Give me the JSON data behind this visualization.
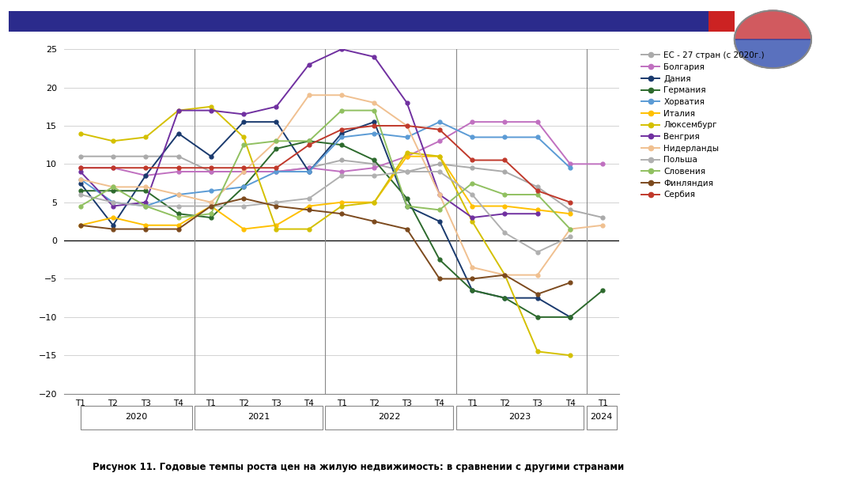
{
  "series": {
    "ЕС - 27 стран (с 2020г.)": {
      "color": "#aaaaaa",
      "values": [
        11.0,
        11.0,
        11.0,
        11.0,
        9.0,
        9.0,
        9.0,
        9.5,
        10.5,
        10.0,
        9.0,
        10.0,
        9.5,
        9.0,
        7.0,
        4.0,
        3.0
      ]
    },
    "Болгария": {
      "color": "#c070c0",
      "values": [
        9.5,
        9.5,
        8.5,
        9.0,
        9.0,
        9.0,
        9.0,
        9.5,
        9.0,
        9.5,
        11.0,
        13.0,
        15.5,
        15.5,
        15.5,
        10.0,
        10.0
      ]
    },
    "Дания": {
      "color": "#1a3a6e",
      "values": [
        7.5,
        2.0,
        8.5,
        14.0,
        11.0,
        15.5,
        15.5,
        9.0,
        14.0,
        15.5,
        4.5,
        2.5,
        -6.5,
        -7.5,
        -7.5,
        -10.0,
        null
      ]
    },
    "Германия": {
      "color": "#2d6a2d",
      "values": [
        6.5,
        6.5,
        6.5,
        3.5,
        3.0,
        7.0,
        12.0,
        13.0,
        12.5,
        10.5,
        5.5,
        -2.5,
        -6.5,
        -7.5,
        -10.0,
        -10.0,
        -6.5
      ]
    },
    "Хорватия": {
      "color": "#5b9bd5",
      "values": [
        8.0,
        5.0,
        4.5,
        6.0,
        6.5,
        7.0,
        9.0,
        9.0,
        13.5,
        14.0,
        13.5,
        15.5,
        13.5,
        13.5,
        13.5,
        9.5,
        null
      ]
    },
    "Италия": {
      "color": "#ffc000",
      "values": [
        2.0,
        3.0,
        2.0,
        2.0,
        4.5,
        1.5,
        2.0,
        4.5,
        5.0,
        5.0,
        11.0,
        11.0,
        4.5,
        4.5,
        4.0,
        3.5,
        null
      ]
    },
    "Люксембург": {
      "color": "#d4c000",
      "values": [
        14.0,
        13.0,
        13.5,
        17.0,
        17.5,
        13.5,
        1.5,
        1.5,
        4.5,
        5.0,
        11.5,
        11.0,
        2.5,
        -4.5,
        -14.5,
        -15.0,
        null
      ]
    },
    "Венгрия": {
      "color": "#7030a0",
      "values": [
        9.0,
        4.5,
        5.0,
        17.0,
        17.0,
        16.5,
        17.5,
        23.0,
        25.0,
        24.0,
        18.0,
        6.0,
        3.0,
        3.5,
        3.5,
        null,
        null
      ]
    },
    "Нидерланды": {
      "color": "#f0c090",
      "values": [
        8.0,
        7.0,
        7.0,
        6.0,
        5.0,
        9.0,
        13.0,
        19.0,
        19.0,
        18.0,
        15.0,
        6.0,
        -3.5,
        -4.5,
        -4.5,
        1.5,
        2.0
      ]
    },
    "Польша": {
      "color": "#b0b0b0",
      "values": [
        6.0,
        5.0,
        4.5,
        4.5,
        4.5,
        4.5,
        5.0,
        5.5,
        8.5,
        8.5,
        9.0,
        9.0,
        6.0,
        1.0,
        -1.5,
        0.5,
        null
      ]
    },
    "Словения": {
      "color": "#90c060",
      "values": [
        4.5,
        7.0,
        4.5,
        3.0,
        3.5,
        12.5,
        13.0,
        13.0,
        17.0,
        17.0,
        4.5,
        4.0,
        7.5,
        6.0,
        6.0,
        1.5,
        null
      ]
    },
    "Финляндия": {
      "color": "#7c4a1e",
      "values": [
        2.0,
        1.5,
        1.5,
        1.5,
        4.5,
        5.5,
        4.5,
        4.0,
        3.5,
        2.5,
        1.5,
        -5.0,
        -5.0,
        -4.5,
        -7.0,
        -5.5,
        null
      ]
    },
    "Сербия": {
      "color": "#c0392b",
      "values": [
        9.5,
        9.5,
        9.5,
        9.5,
        9.5,
        9.5,
        9.5,
        12.5,
        14.5,
        15.0,
        15.0,
        14.5,
        10.5,
        10.5,
        6.5,
        5.0,
        null
      ]
    }
  },
  "x_labels": [
    "T1",
    "T2",
    "T3",
    "T4",
    "T1",
    "T2",
    "T3",
    "T4",
    "T1",
    "T2",
    "T3",
    "T4",
    "T1",
    "T2",
    "T3",
    "T4",
    "T1"
  ],
  "year_sections": [
    {
      "label": "2020",
      "start": 0,
      "end": 3
    },
    {
      "label": "2021",
      "start": 4,
      "end": 7
    },
    {
      "label": "2022",
      "start": 8,
      "end": 11
    },
    {
      "label": "2023",
      "start": 12,
      "end": 15
    },
    {
      "label": "2024",
      "start": 16,
      "end": 16
    }
  ],
  "ylim": [
    -20,
    25
  ],
  "yticks": [
    -20,
    -15,
    -10,
    -5,
    0,
    5,
    10,
    15,
    20,
    25
  ],
  "grid_color": "#cccccc",
  "separator_color": "#888888",
  "top_bar_color": "#2b2b8c",
  "top_bar_red": "#cc2222",
  "caption": "Рисунок 11. Годовые темпы роста цен на жилую недвижимость: в сравнении с другими странами"
}
